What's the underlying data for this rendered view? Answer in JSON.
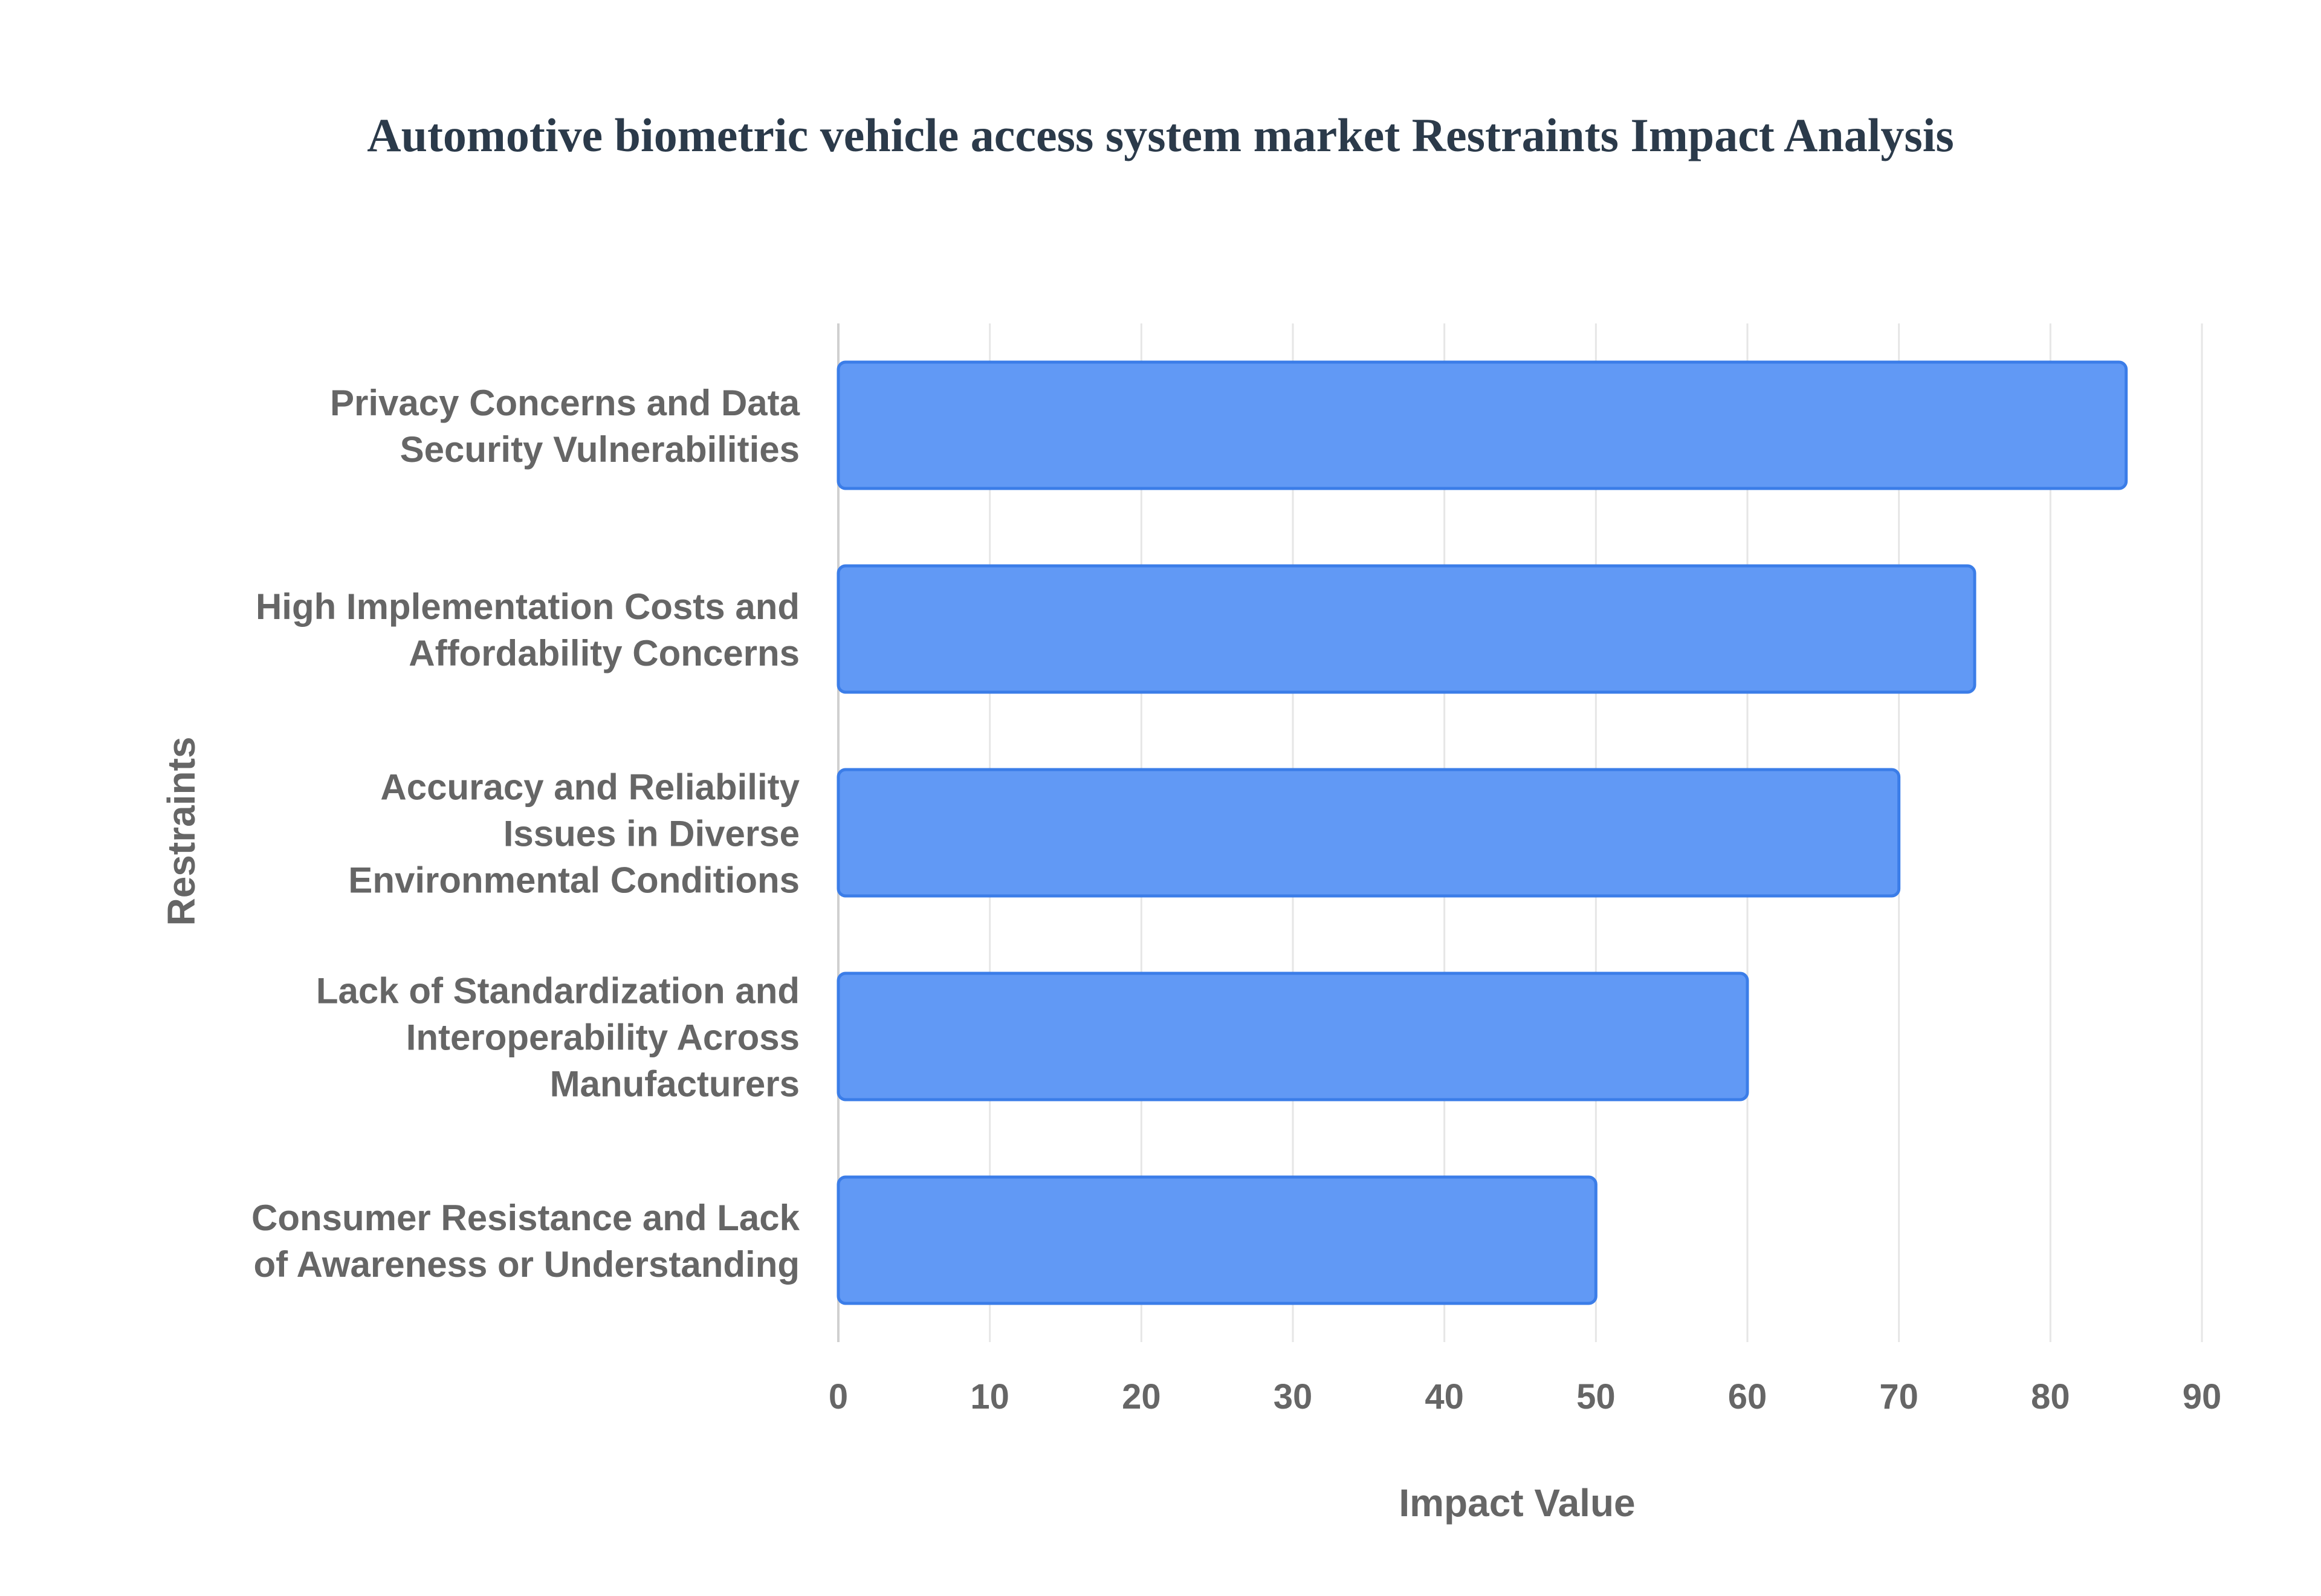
{
  "chart_data": {
    "type": "bar",
    "orientation": "horizontal",
    "title": "Automotive biometric vehicle access system market Restraints Impact Analysis",
    "xlabel": "Impact Value",
    "ylabel": "Restraints",
    "categories": [
      [
        "Privacy Concerns and Data",
        "Security Vulnerabilities"
      ],
      [
        "High Implementation Costs and",
        "Affordability Concerns"
      ],
      [
        "Accuracy and Reliability",
        "Issues in Diverse",
        "Environmental Conditions"
      ],
      [
        "Lack of Standardization and",
        "Interoperability Across",
        "Manufacturers"
      ],
      [
        "Consumer Resistance and Lack",
        "of Awareness or Understanding"
      ]
    ],
    "values": [
      85,
      75,
      70,
      60,
      50
    ],
    "xlim": [
      0,
      90
    ],
    "xticks": [
      "0",
      "10",
      "20",
      "30",
      "40",
      "50",
      "60",
      "70",
      "80",
      "90"
    ],
    "grid": true,
    "colors": {
      "bar_fill": "#6199f5",
      "bar_stroke": "#3b7de8",
      "grid": "#e6e6e6"
    }
  }
}
